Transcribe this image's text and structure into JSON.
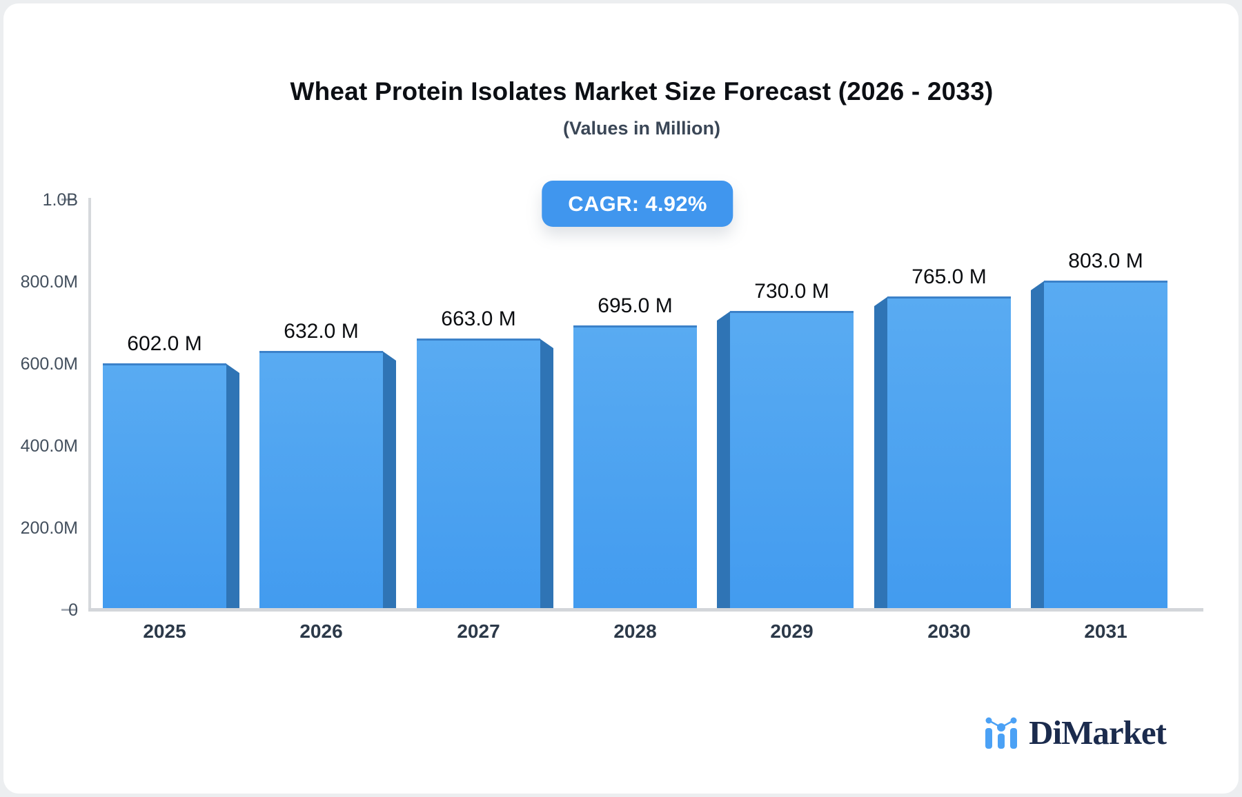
{
  "page": {
    "background": "#ECEEF0",
    "card_background": "#FFFFFF"
  },
  "header": {
    "title": "Wheat Protein Isolates Market Size Forecast (2026 - 2033)",
    "subtitle": "(Values in Million)"
  },
  "badge": {
    "label": "CAGR: 4.92%",
    "background": "#4096EE",
    "text_color": "#FFFFFF"
  },
  "chart_data": {
    "type": "bar",
    "title": "Wheat Protein Isolates Market Size Forecast (2026 - 2033)",
    "subtitle": "(Values in Million)",
    "cagr": "4.92%",
    "categories": [
      "2025",
      "2026",
      "2027",
      "2028",
      "2029",
      "2030",
      "2031"
    ],
    "values": [
      602,
      632,
      663,
      695,
      730,
      765,
      803
    ],
    "value_labels": [
      "602.0 M",
      "632.0 M",
      "663.0 M",
      "695.0 M",
      "730.0 M",
      "765.0 M",
      "803.0 M"
    ],
    "y_ticks": [
      "1.0B",
      "800.0M",
      "600.0M",
      "400.0M",
      "200.0M",
      "0"
    ],
    "ylim": [
      0,
      1000
    ],
    "grid": false,
    "legend": false,
    "effect": "3d-perspective-bars",
    "bar_color": "#429BEF",
    "bar_color_light": "#59ABF2",
    "bar_side_color": "#2F74B5",
    "bar_top_edge_color": "#3B81C9",
    "axis_color": "#D6D9DC"
  },
  "branding": {
    "logo_text": "DiMarket",
    "logo_color": "#1B2B4D",
    "logo_icon": "bar-chart-dots-icon",
    "logo_icon_color": "#4BA1F5"
  }
}
